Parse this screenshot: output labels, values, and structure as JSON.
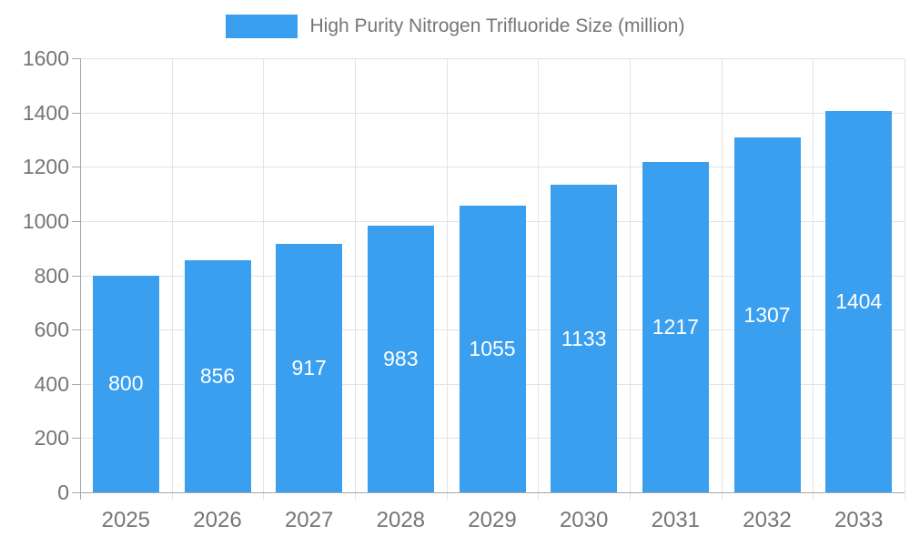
{
  "chart_data": {
    "type": "bar",
    "title": "High Purity Nitrogen Trifluoride Size (million)",
    "categories": [
      "2025",
      "2026",
      "2027",
      "2028",
      "2029",
      "2030",
      "2031",
      "2032",
      "2033"
    ],
    "values": [
      800,
      856,
      917,
      983,
      1055,
      1133,
      1217,
      1307,
      1404
    ],
    "xlabel": "",
    "ylabel": "",
    "ylim": [
      0,
      1600
    ],
    "yticks": [
      0,
      200,
      400,
      600,
      800,
      1000,
      1200,
      1400,
      1600
    ],
    "grid": true,
    "legend_position": "top-center",
    "value_labels": "inside-center",
    "colors": {
      "bar": "#3B9FF0",
      "value_text": "#ffffff",
      "axis_text": "#757575",
      "axis_line": "#a8a8a8",
      "tick_line": "#aaaaaa",
      "gridline": "#e3e3e3",
      "background": "#ffffff"
    }
  }
}
